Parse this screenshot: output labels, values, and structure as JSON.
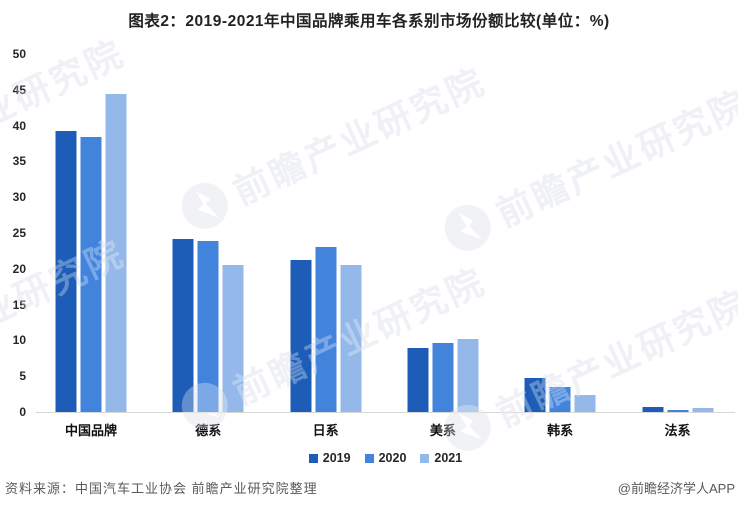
{
  "title": "图表2：2019-2021年中国品牌乘用车各系别市场份额比较(单位：%)",
  "watermark": {
    "text": "前瞻产业研究院"
  },
  "footer": {
    "source": "资料来源：中国汽车工业协会 前瞻产业研究院整理",
    "credit": "@前瞻经济学人APP"
  },
  "colors": {
    "series_2019": "#1d5db8",
    "series_2020": "#4283dc",
    "series_2021": "#93b8e9",
    "axis_line": "#d6d6d6",
    "title_text": "#222222",
    "footer_text": "#595959"
  },
  "chart_data": {
    "type": "bar",
    "title": "图表2：2019-2021年中国品牌乘用车各系别市场份额比较(单位：%)",
    "unit": "%",
    "categories": [
      "中国品牌",
      "德系",
      "日系",
      "美系",
      "韩系",
      "法系"
    ],
    "series": [
      {
        "name": "2019",
        "color": "#1d5db8",
        "values": [
          39.2,
          24.2,
          21.3,
          8.9,
          4.7,
          0.7
        ]
      },
      {
        "name": "2020",
        "color": "#4283dc",
        "values": [
          38.4,
          23.9,
          23.1,
          9.6,
          3.5,
          0.3
        ]
      },
      {
        "name": "2021",
        "color": "#93b8e9",
        "values": [
          44.4,
          20.6,
          20.6,
          10.2,
          2.4,
          0.6
        ]
      }
    ],
    "xlabel": "",
    "ylabel": "",
    "ylim": [
      0,
      50
    ],
    "yticks": [
      0,
      5,
      10,
      15,
      20,
      25,
      30,
      35,
      40,
      45,
      50
    ],
    "grid": false,
    "legend_position": "bottom"
  }
}
